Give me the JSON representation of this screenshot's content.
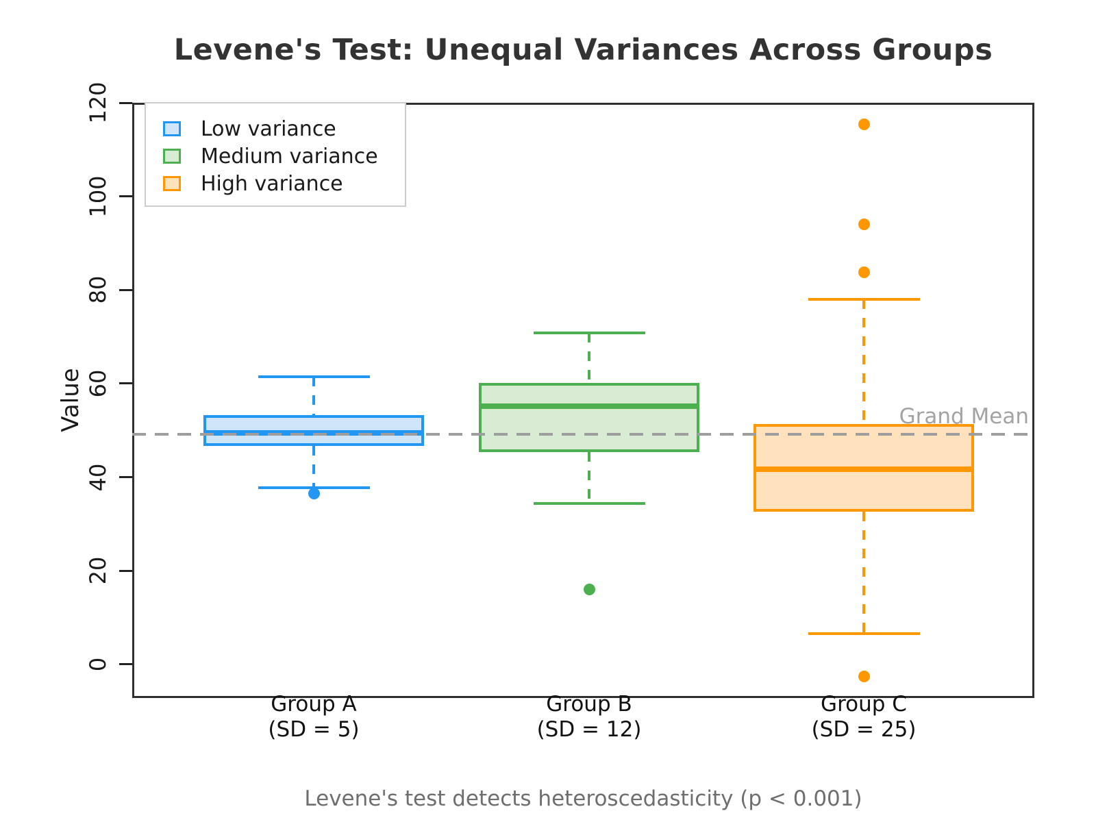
{
  "chart_data": {
    "type": "boxplot",
    "title": "Levene's Test: Unequal Variances Across Groups",
    "ylabel": "Value",
    "xlabel": "",
    "ylim": [
      -7,
      120
    ],
    "yticks": [
      0,
      20,
      40,
      60,
      80,
      100,
      120
    ],
    "grid": false,
    "legend_position": "top-left",
    "grand_mean": {
      "label": "Grand Mean",
      "value": 49.1
    },
    "caption": "Levene's test detects heteroscedasticity (p < 0.001)",
    "legend": [
      {
        "label": "Low variance",
        "fill": "#cfe5f9",
        "border": "#2196f3"
      },
      {
        "label": "Medium variance",
        "fill": "#d8ecd4",
        "border": "#4caf50"
      },
      {
        "label": "High variance",
        "fill": "#fde2bd",
        "border": "#ff9800"
      }
    ],
    "groups": [
      {
        "name": "Group A",
        "sd_label": "(SD = 5)",
        "variance_class": "Low variance",
        "color": "#2196f3",
        "fill": "#cfe5f9",
        "whisker_low": 37.7,
        "q1": 46.7,
        "median": 49.5,
        "q3": 53.2,
        "whisker_high": 61.4,
        "outliers": [
          36.5
        ]
      },
      {
        "name": "Group B",
        "sd_label": "(SD = 12)",
        "variance_class": "Medium variance",
        "color": "#4caf50",
        "fill": "#d8ecd4",
        "whisker_low": 34.4,
        "q1": 45.3,
        "median": 55.1,
        "q3": 60.1,
        "whisker_high": 70.9,
        "outliers": [
          16
        ]
      },
      {
        "name": "Group C",
        "sd_label": "(SD = 25)",
        "variance_class": "High variance",
        "color": "#ff9800",
        "fill": "#fde2bd",
        "whisker_low": 6.6,
        "q1": 32.6,
        "median": 41.7,
        "q3": 51.4,
        "whisker_high": 78,
        "outliers": [
          -2.6,
          83.8,
          94.1,
          115.4
        ]
      }
    ]
  }
}
